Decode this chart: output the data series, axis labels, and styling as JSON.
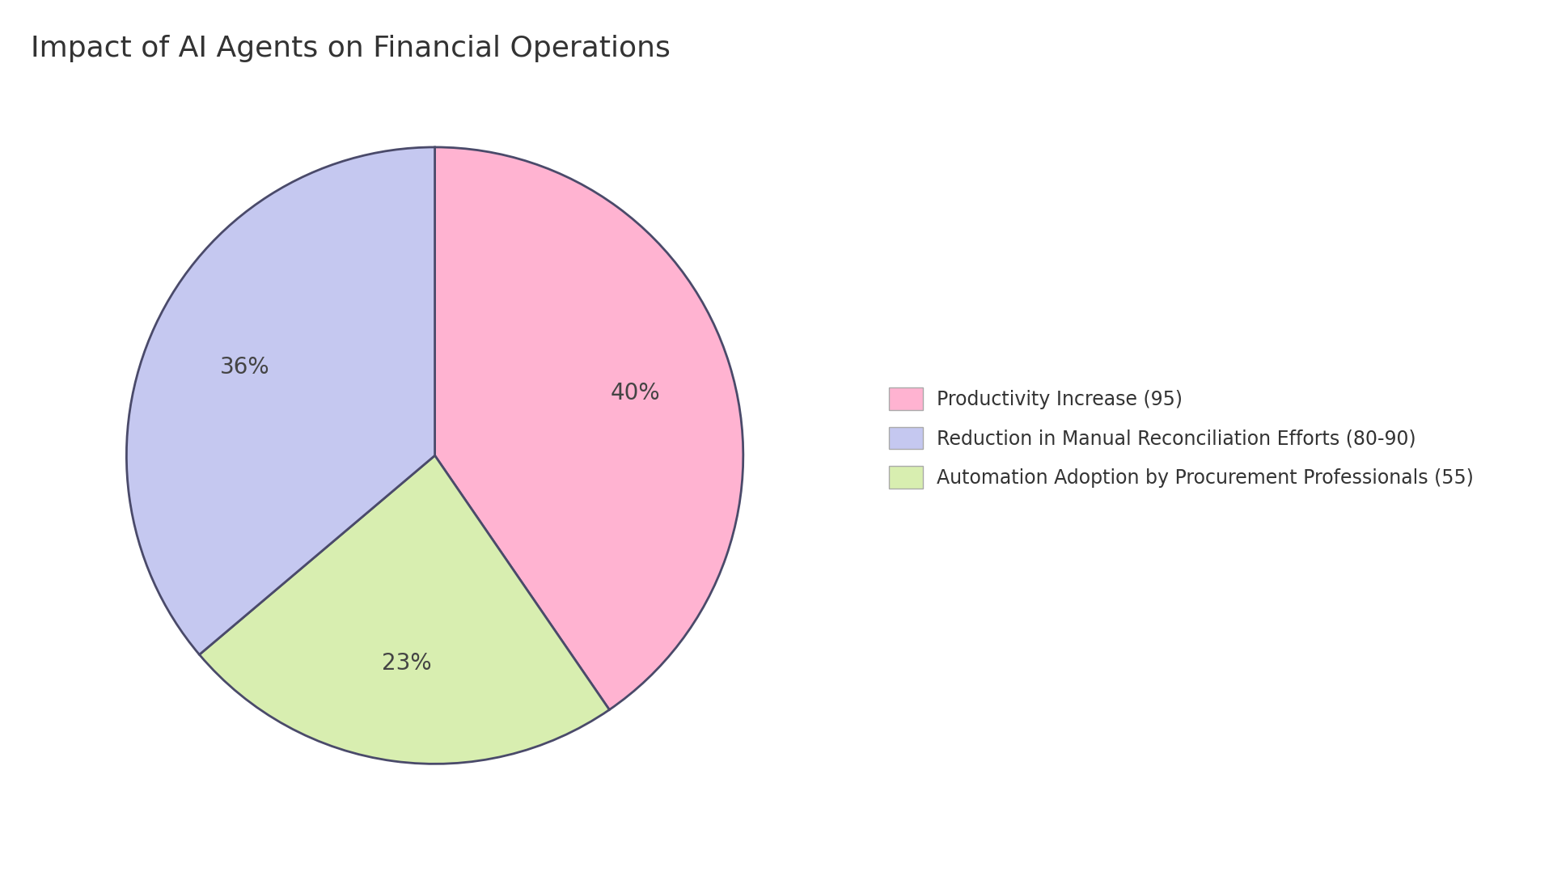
{
  "title": "Impact of AI Agents on Financial Operations",
  "title_fontsize": 26,
  "title_color": "#333333",
  "slices": [
    {
      "label": "Productivity Increase (95)",
      "value": 95,
      "color": "#FFB3D1",
      "pct": "40%"
    },
    {
      "label": "Reduction in Manual Reconciliation Efforts (80-90)",
      "value": 85,
      "color": "#C5C8F0",
      "pct": "36%"
    },
    {
      "label": "Automation Adoption by Procurement Professionals (55)",
      "value": 55,
      "color": "#D8EEB0",
      "pct": "23%"
    }
  ],
  "edge_color": "#4A4A6A",
  "edge_linewidth": 2.0,
  "autopct_fontsize": 20,
  "autopct_color": "#444444",
  "legend_fontsize": 17,
  "background_color": "#FFFFFF",
  "startangle": 90,
  "pctdistance": 0.68
}
